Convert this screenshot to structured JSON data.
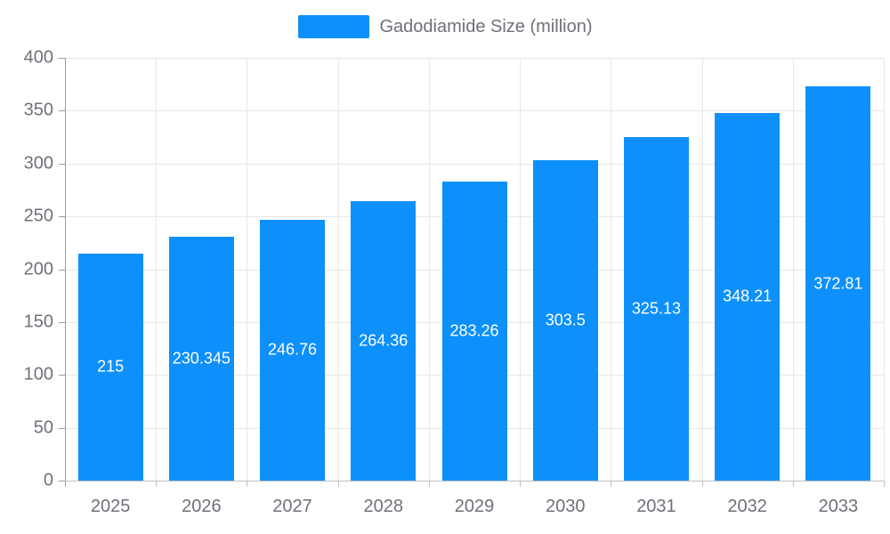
{
  "legend": {
    "label": "Gadodiamide Size (million)"
  },
  "colors": {
    "bar": "#0D90FB",
    "grid": "#E7E7E7",
    "y_axis_line": "#9E9E9E",
    "x_axis_line": "#BFBFBF",
    "tick_text": "#6E7079",
    "bar_label_text": "#FFFFFF"
  },
  "chart_data": {
    "type": "bar",
    "title": "Gadodiamide Size (million)",
    "categories": [
      "2025",
      "2026",
      "2027",
      "2028",
      "2029",
      "2030",
      "2031",
      "2032",
      "2033"
    ],
    "series": [
      {
        "name": "Gadodiamide Size (million)",
        "values": [
          215,
          230.345,
          246.76,
          264.36,
          283.26,
          303.5,
          325.13,
          348.21,
          372.81
        ],
        "value_labels": [
          "215",
          "230.345",
          "246.76",
          "264.36",
          "283.26",
          "303.5",
          "325.13",
          "348.21",
          "372.81"
        ]
      }
    ],
    "xlabel": "",
    "ylabel": "",
    "ylim": [
      0,
      400
    ],
    "ytick_interval": 50,
    "ytick_labels": [
      "0",
      "50",
      "100",
      "150",
      "200",
      "250",
      "300",
      "350",
      "400"
    ],
    "grid": "horizontal and vertical light gridlines",
    "legend_position": "top-center",
    "value_label_position": "inside-center",
    "bar_color": "#0D90FB"
  }
}
